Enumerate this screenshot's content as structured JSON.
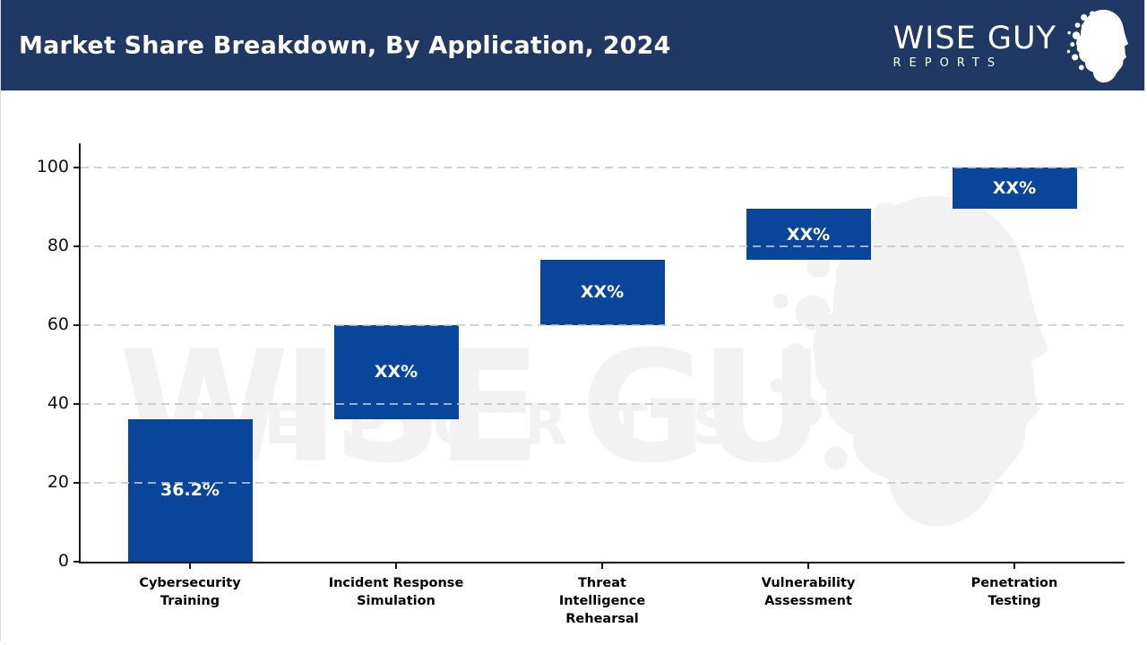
{
  "header": {
    "title": "Market Share Breakdown, By Application, 2024",
    "logo": {
      "line1": "WISE GUY",
      "line2": "REPORTS"
    }
  },
  "watermark": {
    "line1": "WISE GUY",
    "line2": "REPORTS"
  },
  "colors": {
    "header_bg": "#1F3864",
    "bar": "#0A459C",
    "bar_label": "#FFFFFF",
    "axis": "#1A1A1A",
    "grid": "#D3D3D3",
    "watermark": "#F2F2F2",
    "title_text": "#FFFFFF"
  },
  "chart_data": {
    "type": "bar",
    "subtype": "waterfall",
    "title": "Market Share Breakdown, By Application, 2024",
    "unit": "%",
    "categories": [
      "Cybersecurity Training",
      "Incident Response Simulation",
      "Threat Intelligence Rehearsal",
      "Vulnerability Assessment",
      "Penetration Testing"
    ],
    "category_lines": [
      [
        "Cybersecurity",
        "Training"
      ],
      [
        "Incident Response",
        "Simulation"
      ],
      [
        "Threat",
        "Intelligence",
        "Rehearsal"
      ],
      [
        "Vulnerability",
        "Assessment"
      ],
      [
        "Penetration",
        "Testing"
      ]
    ],
    "segments": [
      {
        "label": "36.2%",
        "start": 0,
        "end": 36.2
      },
      {
        "label": "XX%",
        "start": 36.2,
        "end": 60.0
      },
      {
        "label": "XX%",
        "start": 60.0,
        "end": 76.6
      },
      {
        "label": "XX%",
        "start": 76.6,
        "end": 89.5
      },
      {
        "label": "XX%",
        "start": 89.5,
        "end": 100.0
      }
    ],
    "xlabel": "",
    "ylabel": "",
    "ylim": [
      0,
      106
    ],
    "yticks": [
      0,
      20,
      40,
      60,
      80,
      100
    ],
    "grid": "horizontal-dashed",
    "legend": "none"
  }
}
